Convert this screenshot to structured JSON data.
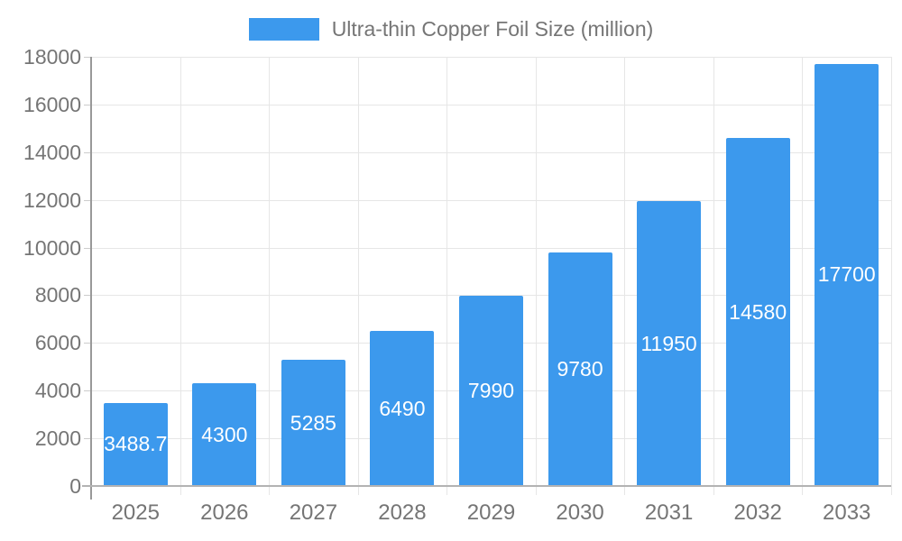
{
  "chart_data": {
    "type": "bar",
    "title": "",
    "legend": "Ultra-thin Copper Foil Size (million)",
    "legend_position": "top-center",
    "categories": [
      "2025",
      "2026",
      "2027",
      "2028",
      "2029",
      "2030",
      "2031",
      "2032",
      "2033"
    ],
    "values": [
      3488.7,
      4300,
      5285,
      6490,
      7990,
      9780,
      11950,
      14580,
      17700
    ],
    "xlabel": "",
    "ylabel": "",
    "ylim": [
      0,
      18000
    ],
    "ytick_step": 2000,
    "grid": true,
    "bar_color": "#3c99ed",
    "value_label_color": "#ffffff",
    "axis_label_color": "#757575",
    "gridline_color": "#e6e6e6",
    "x_axis_line_color": "#b3b3b3",
    "y_axis_line_color": "#999999",
    "tick_color": "#cccccc"
  }
}
